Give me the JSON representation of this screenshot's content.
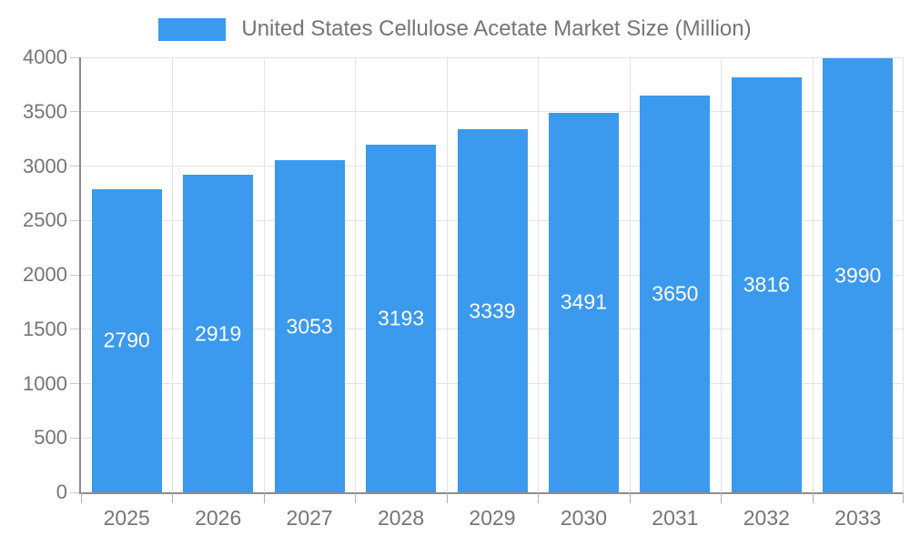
{
  "legend": {
    "label": "United States Cellulose Acetate Market Size (Million)",
    "swatch_color": "#3b99ee"
  },
  "chart_data": {
    "type": "bar",
    "title": "United States Cellulose Acetate Market Size (Million)",
    "categories": [
      "2025",
      "2026",
      "2027",
      "2028",
      "2029",
      "2030",
      "2031",
      "2032",
      "2033"
    ],
    "values": [
      2790,
      2919,
      3053,
      3193,
      3339,
      3491,
      3650,
      3816,
      3990
    ],
    "xlabel": "",
    "ylabel": "",
    "ylim": [
      0,
      4000
    ],
    "yticks": [
      0,
      500,
      1000,
      1500,
      2000,
      2500,
      3000,
      3500,
      4000
    ],
    "grid": true,
    "legend_position": "top-center",
    "bar_label_position": "inside-center",
    "colors": {
      "bar": "#3b99ee",
      "bar_label": "#ffffff",
      "axis_line": "#8c8c8c",
      "tick": "#b0b0b0",
      "gridline": "#e3e3e3",
      "text": "#757575",
      "background": "#ffffff"
    }
  }
}
